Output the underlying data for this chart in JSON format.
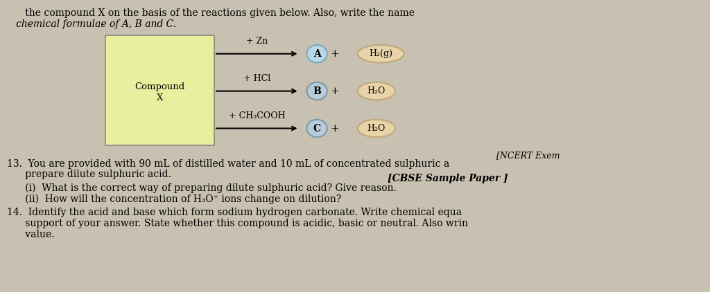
{
  "bg_color": "#c8c0b0",
  "box_color": "#e8f0a0",
  "box_edge": "#888877",
  "reactions": [
    {
      "reagent": "+ Zn",
      "product_label": "A",
      "product_circle_color": "#b8d8e8",
      "product_circle_edge": "#7aabbd",
      "byproduct_label": "H₂(g)",
      "byproduct_circle_color": "#e8d4a8",
      "byproduct_circle_edge": "#c0a87a"
    },
    {
      "reagent": "+ HCl",
      "product_label": "B",
      "product_circle_color": "#b8ccd8",
      "product_circle_edge": "#7a9aaa",
      "byproduct_label": "H₂O",
      "byproduct_circle_color": "#e8d4a8",
      "byproduct_circle_edge": "#c0a87a"
    },
    {
      "reagent": "+ CH₃COOH",
      "product_label": "C",
      "product_circle_color": "#b8ccd8",
      "product_circle_edge": "#7a9aaa",
      "byproduct_label": "H₂O",
      "byproduct_circle_color": "#e8d4a8",
      "byproduct_circle_edge": "#c0a87a"
    }
  ],
  "line1": "      the compound X on the basis of the reactions given below. Also, write the name",
  "line2": "   chemical formulae of A, B and C.",
  "q13_line1": "13.  You are provided with 90 mL of distilled water and 10 mL of concentrated sulphuric a",
  "q13_line2": "      prepare dilute sulphuric acid.",
  "ncert": "[NCERT Exem",
  "cbse": "[CBSE Sample Paper ]",
  "sub_i": "      (i)  What is the correct way of preparing dilute sulphuric acid? Give reason.",
  "sub_ii": "      (ii)  How will the concentration of H₃O⁺ ions change on dilution?",
  "q14_line1": "14.  Identify the acid and base which form sodium hydrogen carbonate. Write chemical equa",
  "q14_line2": "      support of your answer. State whether this compound is acidic, basic or neutral. Also wrin",
  "q14_line3": "      value."
}
